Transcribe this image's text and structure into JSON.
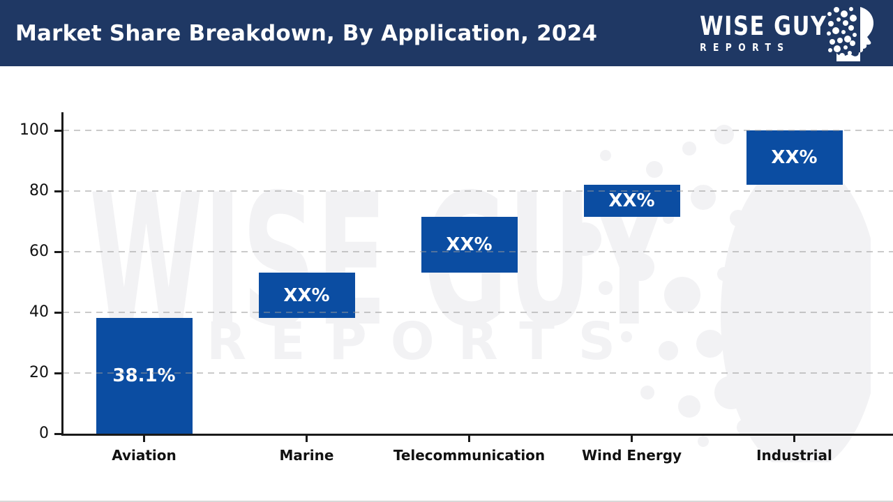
{
  "header": {
    "title": "Market Share Breakdown, By Application, 2024",
    "logo": {
      "line1": "WISE GUY",
      "line2": "REPORTS"
    }
  },
  "watermark": {
    "line1": "WISE GUY",
    "line2": "REPORTS"
  },
  "colors": {
    "header_bg": "#1f3864",
    "bar": "#0b4da2",
    "axis": "#1a1a1a",
    "watermark": "#f2f2f4"
  },
  "chart_data": {
    "type": "bar",
    "variant": "waterfall",
    "title": "Market Share Breakdown, By Application, 2024",
    "categories": [
      "Aviation",
      "Marine",
      "Telecommunication",
      "Wind Energy",
      "Industrial"
    ],
    "segments": [
      {
        "category": "Aviation",
        "start": 0,
        "end": 38.1,
        "label": "38.1%"
      },
      {
        "category": "Marine",
        "start": 38.1,
        "end": 53.1,
        "label": "XX%"
      },
      {
        "category": "Telecommunication",
        "start": 53.1,
        "end": 71.4,
        "label": "XX%"
      },
      {
        "category": "Wind Energy",
        "start": 71.4,
        "end": 82.1,
        "label": "XX%"
      },
      {
        "category": "Industrial",
        "start": 82.1,
        "end": 100,
        "label": "XX%"
      }
    ],
    "xlabel": "",
    "ylabel": "",
    "ylim": [
      0,
      105
    ],
    "yticks": [
      0,
      20,
      40,
      60,
      80,
      100
    ],
    "grid": "horizontal-dashed",
    "legend": "none",
    "bar_color": "#0b4da2",
    "bar_label_color": "#ffffff"
  }
}
